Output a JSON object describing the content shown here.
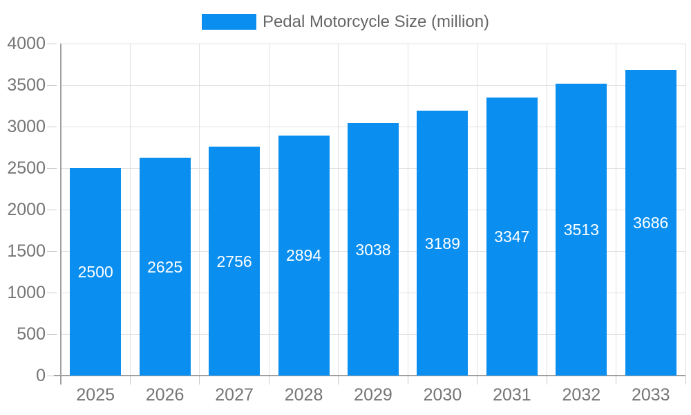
{
  "chart_data": {
    "type": "bar",
    "title": "Pedal Motorcycle Size (million)",
    "legend": [
      "Pedal Motorcycle Size (million)"
    ],
    "legend_position": "top-center",
    "categories": [
      "2025",
      "2026",
      "2027",
      "2028",
      "2029",
      "2030",
      "2031",
      "2032",
      "2033"
    ],
    "values": [
      2500,
      2625,
      2756,
      2894,
      3038,
      3189,
      3347,
      3513,
      3686
    ],
    "bar_value_labels": [
      "2500",
      "2625",
      "2756",
      "2894",
      "3038",
      "3189",
      "3347",
      "3513",
      "3686"
    ],
    "xlabel": "",
    "ylabel": "",
    "ylim": [
      0,
      4000
    ],
    "ytick_step": 500,
    "ytick_labels": [
      "0",
      "500",
      "1000",
      "1500",
      "2000",
      "2500",
      "3000",
      "3500",
      "4000"
    ],
    "grid": true,
    "bar_labels_inside": true
  },
  "colors": {
    "bar": "#0A8FF1",
    "bar_label": "#FFFFFF",
    "axis_label": "#757575",
    "legend_label": "#666666",
    "gridline": "#E0E0E0",
    "tick": "#C9C9C9",
    "axis_line": "#A0A0A0",
    "background": "#FFFFFF"
  }
}
